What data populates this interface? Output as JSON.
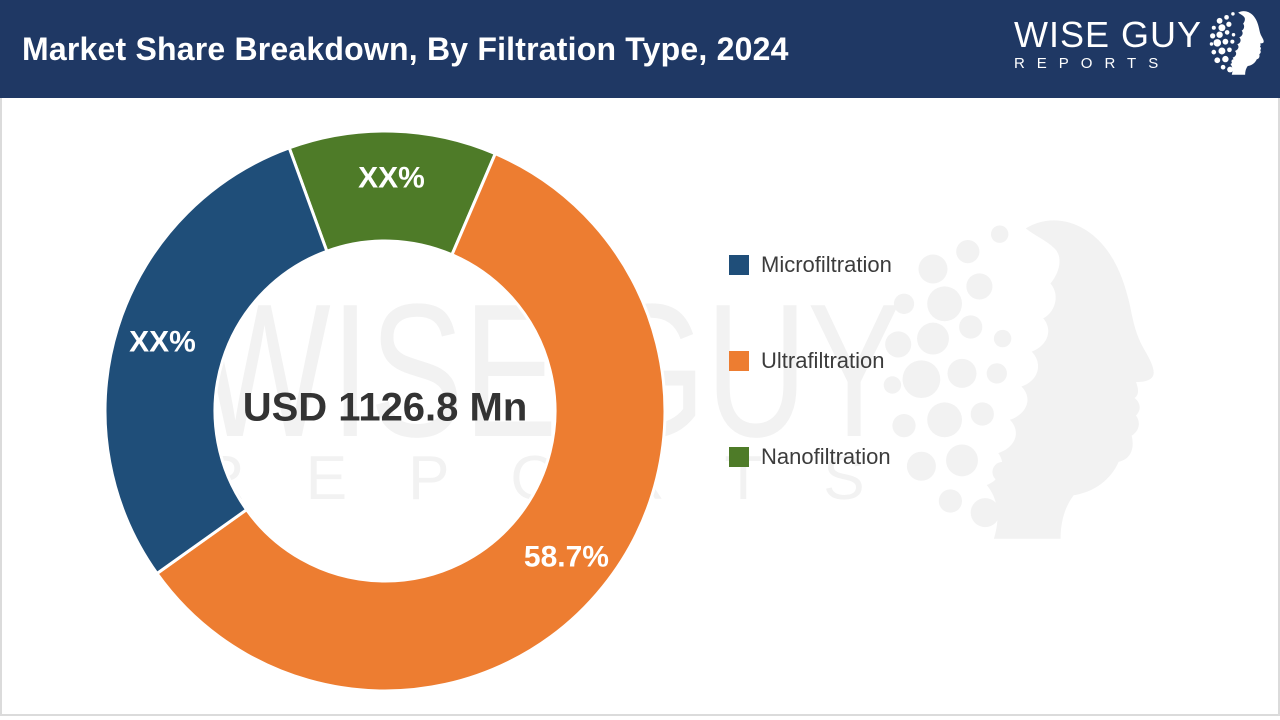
{
  "header": {
    "title": "Market Share Breakdown, By Filtration Type, 2024",
    "logo_line1": "WISE GUY",
    "logo_line2": "REPORTS"
  },
  "watermark": {
    "line1": "WISE GUY",
    "line2": "REPORTS"
  },
  "chart_data": {
    "type": "pie",
    "subtype": "donut",
    "title": "Market Share Breakdown, By Filtration Type, 2024",
    "center_total": "USD 1126.8 Mn",
    "units": "USD Mn",
    "start_angle_deg": -20,
    "legend_position": "right",
    "slices": [
      {
        "name": "Nanofiltration",
        "data_label": "XX%",
        "share_pct": 12.0,
        "share_pct_estimated": true,
        "color": "#4E7B28"
      },
      {
        "name": "Ultrafiltration",
        "data_label": "58.7%",
        "share_pct": 58.7,
        "share_pct_estimated": false,
        "color": "#ED7D31"
      },
      {
        "name": "Microfiltration",
        "data_label": "XX%",
        "share_pct": 29.3,
        "share_pct_estimated": true,
        "color": "#1F4E79"
      }
    ],
    "legend": [
      {
        "label": "Microfiltration",
        "color": "#1F4E79"
      },
      {
        "label": "Ultrafiltration",
        "color": "#ED7D31"
      },
      {
        "label": "Nanofiltration",
        "color": "#4E7B28"
      }
    ]
  },
  "colors": {
    "header_bg": "#1F3864",
    "watermark": "#F2F2F2",
    "center_text": "#333333",
    "legend_text": "#3C3C3C",
    "slice_label_text": "#FFFFFF"
  }
}
